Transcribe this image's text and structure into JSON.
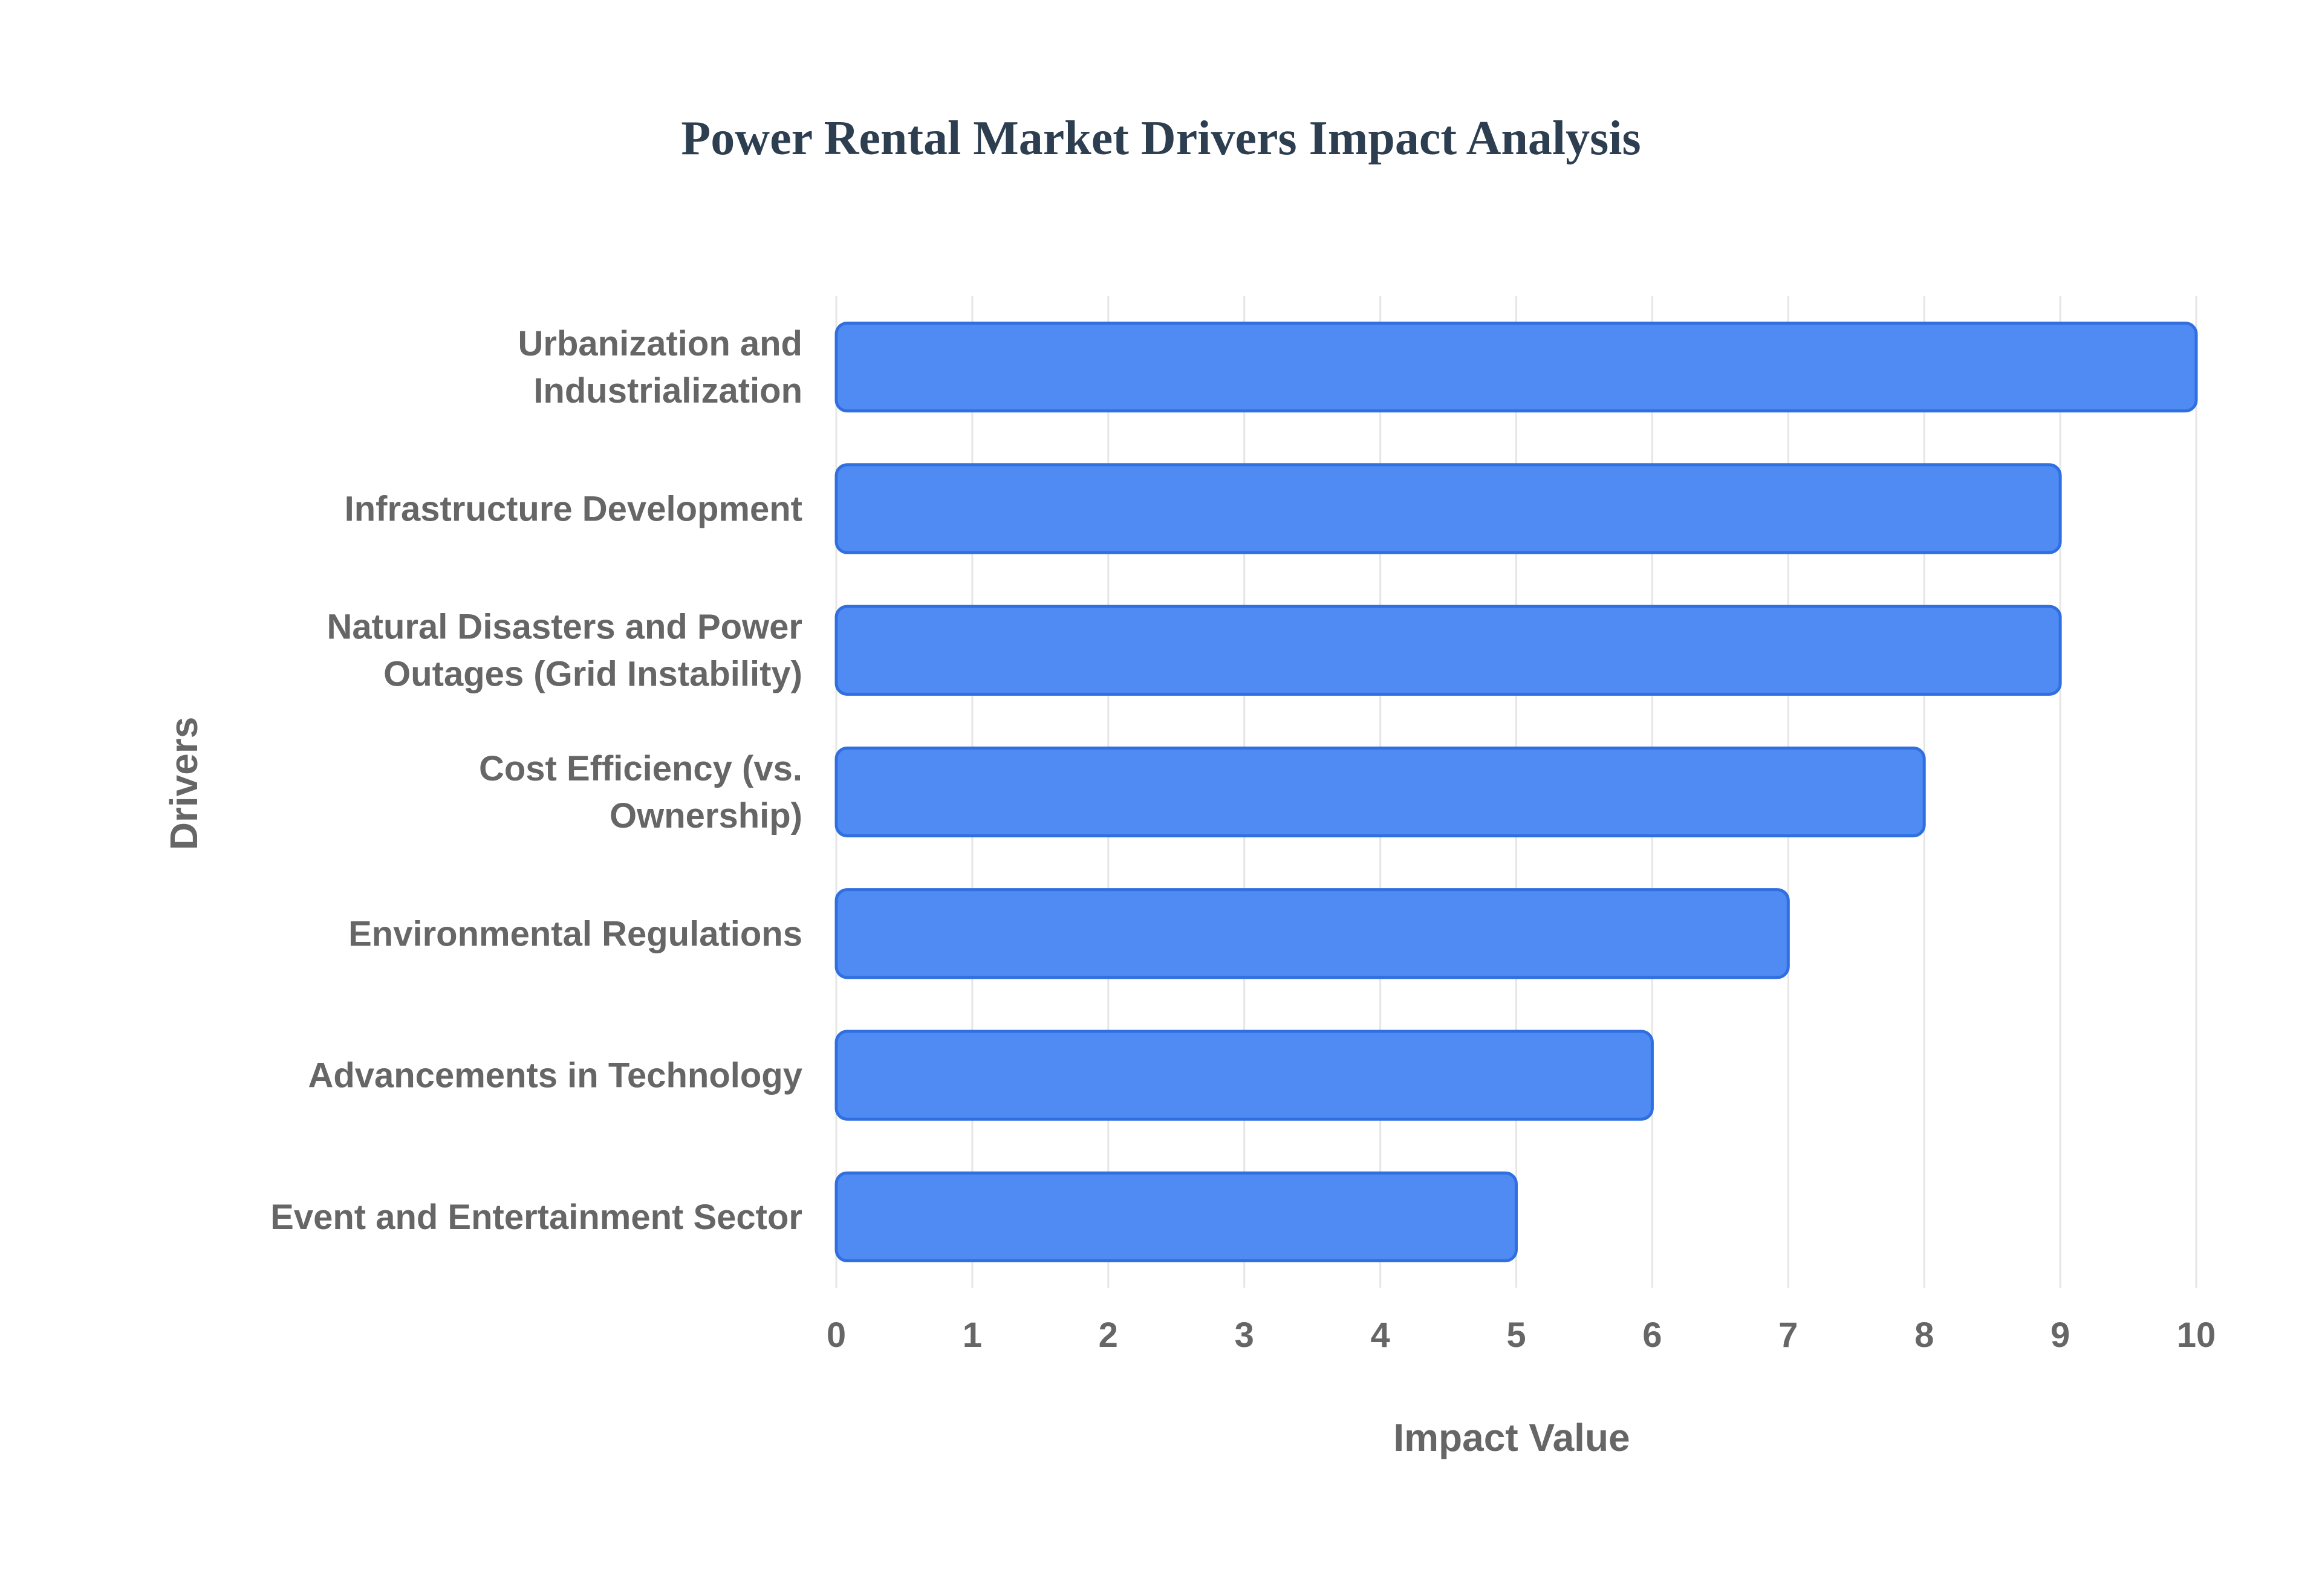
{
  "chart_data": {
    "type": "bar",
    "orientation": "horizontal",
    "title": "Power Rental Market Drivers Impact Analysis",
    "xlabel": "Impact Value",
    "ylabel": "Drivers",
    "categories": [
      "Urbanization and Industrialization",
      "Infrastructure Development",
      "Natural Disasters and Power Outages (Grid Instability)",
      "Cost Efficiency (vs. Ownership)",
      "Environmental Regulations",
      "Advancements in Technology",
      "Event and Entertainment Sector"
    ],
    "category_lines": [
      [
        "Urbanization and",
        "Industrialization"
      ],
      [
        "Infrastructure Development"
      ],
      [
        "Natural Disasters and Power",
        "Outages (Grid Instability)"
      ],
      [
        "Cost Efficiency (vs.",
        "Ownership)"
      ],
      [
        "Environmental Regulations"
      ],
      [
        "Advancements in Technology"
      ],
      [
        "Event and Entertainment Sector"
      ]
    ],
    "values": [
      10,
      9,
      9,
      8,
      7,
      6,
      5
    ],
    "xlim": [
      0,
      10
    ],
    "xticks": [
      0,
      1,
      2,
      3,
      4,
      5,
      6,
      7,
      8,
      9,
      10
    ],
    "grid": true,
    "legend": "none",
    "colors": {
      "bar_fill": "#4f8bf3",
      "bar_stroke": "#2f6fe0",
      "grid": "#e6e6e6",
      "text": "#666666",
      "title": "#2c3e50"
    }
  }
}
